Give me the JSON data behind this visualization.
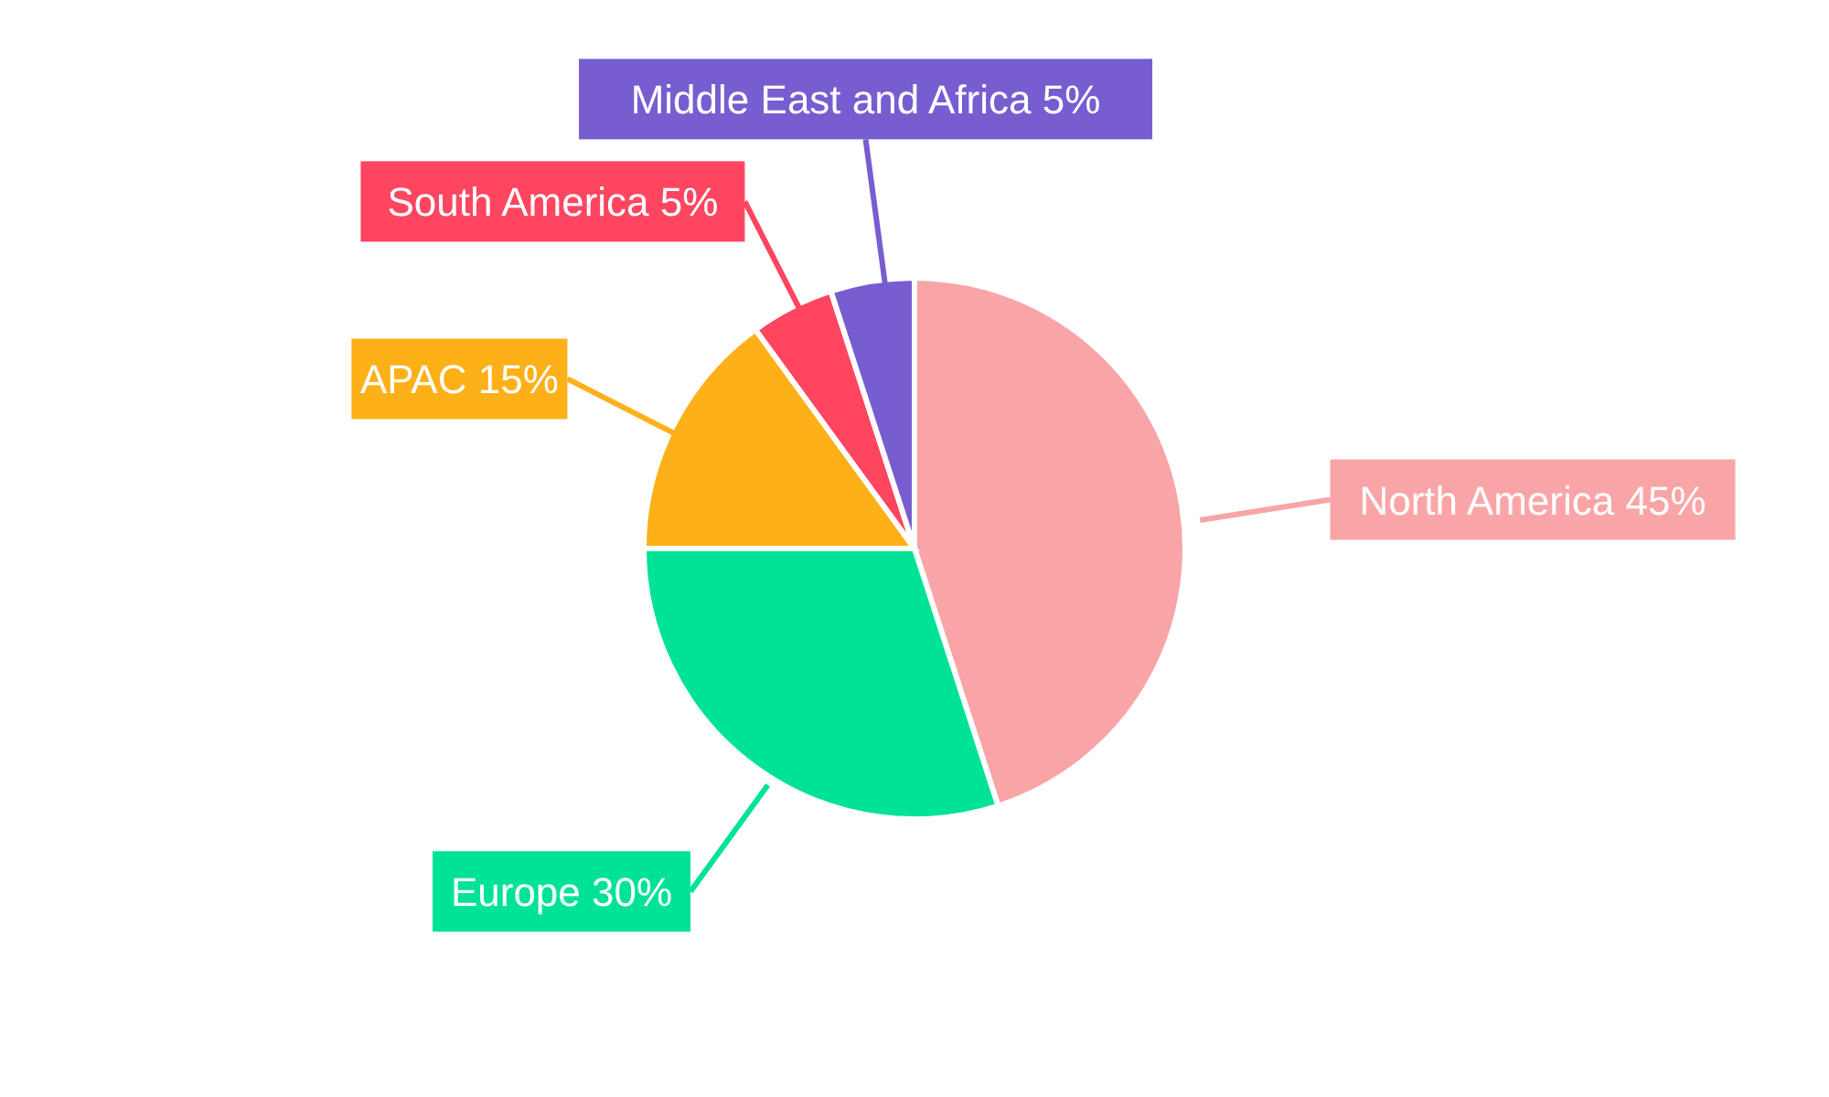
{
  "chart_data": {
    "type": "pie",
    "categories": [
      "North America",
      "Europe",
      "APAC",
      "South America",
      "Middle East and Africa"
    ],
    "values": [
      45,
      30,
      15,
      5,
      5
    ],
    "colors": [
      "#f9a5a7",
      "#00e396",
      "#feb019",
      "#ff4560",
      "#775dd0"
    ],
    "value_labels": [
      "45%",
      "30%",
      "15%",
      "5%",
      "5%"
    ],
    "legend": false
  }
}
